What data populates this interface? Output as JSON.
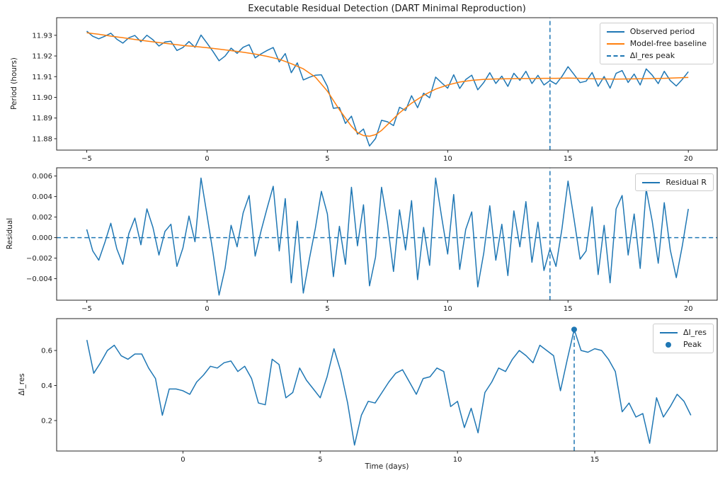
{
  "figure": {
    "title": "Executable Residual Detection (DART Minimal Reproduction)",
    "xlabel": "Time (days)",
    "colors": {
      "blue": "#1f77b4",
      "orange": "#ff7f0e",
      "spine": "#262626",
      "text": "#1a1a1a",
      "background": "#ffffff"
    }
  },
  "chart_data": [
    {
      "id": "period",
      "type": "line",
      "title": "Executable Residual Detection (DART Minimal Reproduction)",
      "ylabel": "Period (hours)",
      "xlim": [
        -6.25,
        21.2
      ],
      "ylim": [
        11.8745,
        11.9385
      ],
      "xticks": [
        -5,
        0,
        5,
        10,
        15,
        20
      ],
      "xtick_labels": [
        "−5",
        "0",
        "5",
        "10",
        "15",
        "20"
      ],
      "yticks": [
        11.88,
        11.89,
        11.9,
        11.91,
        11.92,
        11.93
      ],
      "ytick_labels": [
        "11.88",
        "11.89",
        "11.90",
        "11.91",
        "11.92",
        "11.93"
      ],
      "x": {
        "start": -5,
        "step": 0.25,
        "count": 101
      },
      "series": [
        {
          "name": "Observed period",
          "color": "#1f77b4",
          "style": "solid",
          "defined_as": "baseline_plus_residual"
        },
        {
          "name": "Model-free baseline",
          "color": "#ff7f0e",
          "style": "solid",
          "defined_as": "baseline_anchors"
        }
      ],
      "baseline_anchors": {
        "t": [
          -5,
          -4.5,
          -4,
          -3.5,
          -3,
          -2.5,
          -2,
          -1.5,
          -1,
          -0.5,
          0,
          0.5,
          1,
          1.5,
          2,
          2.5,
          3,
          3.5,
          4,
          4.5,
          5,
          5.5,
          6,
          6.25,
          6.5,
          6.75,
          7,
          7.25,
          7.5,
          8,
          8.5,
          9,
          9.5,
          10,
          10.5,
          11,
          11.5,
          12,
          12.5,
          13,
          13.5,
          14,
          14.5,
          15,
          15.5,
          16,
          16.5,
          17,
          17.5,
          18,
          18.5,
          19,
          19.5,
          20
        ],
        "v": [
          11.9312,
          11.9305,
          11.9296,
          11.9288,
          11.928,
          11.9272,
          11.9265,
          11.9258,
          11.9251,
          11.9246,
          11.924,
          11.9233,
          11.9226,
          11.9218,
          11.9209,
          11.9198,
          11.9184,
          11.9163,
          11.9138,
          11.9098,
          11.903,
          11.894,
          11.886,
          11.883,
          11.8815,
          11.8812,
          11.882,
          11.884,
          11.8868,
          11.8925,
          11.8972,
          11.901,
          11.904,
          11.906,
          11.9074,
          11.9082,
          11.9087,
          11.9089,
          11.909,
          11.9091,
          11.9091,
          11.9092,
          11.9092,
          11.9093,
          11.9092,
          11.909,
          11.9089,
          11.9088,
          11.9089,
          11.909,
          11.9091,
          11.9092,
          11.9094,
          11.9096
        ]
      },
      "residuals": [
        0.0008,
        -0.0013,
        -0.0022,
        -0.0005,
        0.0014,
        -0.0011,
        -0.0026,
        0.0004,
        0.0019,
        -0.0007,
        0.0028,
        0.001,
        -0.0017,
        0.0006,
        0.0013,
        -0.0028,
        -0.001,
        0.0021,
        -0.0004,
        0.0058,
        0.0022,
        -0.0015,
        -0.0056,
        -0.003,
        0.0012,
        -0.0009,
        0.0024,
        0.0041,
        -0.0018,
        0.0007,
        0.0029,
        0.005,
        -0.0013,
        0.0038,
        -0.0044,
        0.0016,
        -0.0054,
        -0.0021,
        0.0009,
        0.0045,
        0.0023,
        -0.0038,
        0.0011,
        -0.0026,
        0.0049,
        -0.0008,
        0.0032,
        -0.0047,
        -0.0019,
        0.0049,
        0.0014,
        -0.0033,
        0.0027,
        -0.0012,
        0.0036,
        -0.0041,
        0.001,
        -0.0027,
        0.0058,
        0.002,
        -0.0016,
        0.0042,
        -0.0031,
        0.0008,
        0.0025,
        -0.0048,
        -0.0015,
        0.0031,
        -0.0022,
        0.0013,
        -0.0037,
        0.0026,
        -0.0009,
        0.0035,
        -0.0024,
        0.0015,
        -0.0032,
        -0.0011,
        -0.0028,
        0.0009,
        0.0055,
        0.0018,
        -0.0021,
        -0.0013,
        0.003,
        -0.0036,
        0.0012,
        -0.0044,
        0.0028,
        0.0041,
        -0.0017,
        0.0023,
        -0.003,
        0.0047,
        0.0016,
        -0.0025,
        0.0034,
        -0.0012,
        -0.0039,
        -0.0008,
        0.0028
      ],
      "vline": {
        "x": 14.25,
        "color": "#1f77b4",
        "style": "dashed",
        "label": "ΔI_res peak"
      },
      "legend": [
        {
          "swatch": "line",
          "color": "#1f77b4",
          "label": "Observed period"
        },
        {
          "swatch": "line",
          "color": "#ff7f0e",
          "label": "Model-free baseline"
        },
        {
          "swatch": "dashed",
          "color": "#1f77b4",
          "label": "ΔI_res peak"
        }
      ]
    },
    {
      "id": "residual",
      "type": "line",
      "ylabel": "Residual",
      "xlim": [
        -6.25,
        21.2
      ],
      "ylim": [
        -0.0061,
        0.0068
      ],
      "xticks": [
        -5,
        0,
        5,
        10,
        15,
        20
      ],
      "xtick_labels": [
        "−5",
        "0",
        "5",
        "10",
        "15",
        "20"
      ],
      "yticks": [
        -0.004,
        -0.002,
        0,
        0.002,
        0.004,
        0.006
      ],
      "ytick_labels": [
        "−0.004",
        "−0.002",
        "0.000",
        "0.002",
        "0.004",
        "0.006"
      ],
      "x": {
        "start": -5,
        "step": 0.25,
        "count": 101
      },
      "series": [
        {
          "name": "Residual R",
          "color": "#1f77b4",
          "style": "solid"
        }
      ],
      "values": [
        0.0008,
        -0.0013,
        -0.0022,
        -0.0005,
        0.0014,
        -0.0011,
        -0.0026,
        0.0004,
        0.0019,
        -0.0007,
        0.0028,
        0.001,
        -0.0017,
        0.0006,
        0.0013,
        -0.0028,
        -0.001,
        0.0021,
        -0.0004,
        0.0058,
        0.0022,
        -0.0015,
        -0.0056,
        -0.003,
        0.0012,
        -0.0009,
        0.0024,
        0.0041,
        -0.0018,
        0.0007,
        0.0029,
        0.005,
        -0.0013,
        0.0038,
        -0.0044,
        0.0016,
        -0.0054,
        -0.0021,
        0.0009,
        0.0045,
        0.0023,
        -0.0038,
        0.0011,
        -0.0026,
        0.0049,
        -0.0008,
        0.0032,
        -0.0047,
        -0.0019,
        0.0049,
        0.0014,
        -0.0033,
        0.0027,
        -0.0012,
        0.0036,
        -0.0041,
        0.001,
        -0.0027,
        0.0058,
        0.002,
        -0.0016,
        0.0042,
        -0.0031,
        0.0008,
        0.0025,
        -0.0048,
        -0.0015,
        0.0031,
        -0.0022,
        0.0013,
        -0.0037,
        0.0026,
        -0.0009,
        0.0035,
        -0.0024,
        0.0015,
        -0.0032,
        -0.0011,
        -0.0028,
        0.0009,
        0.0055,
        0.0018,
        -0.0021,
        -0.0013,
        0.003,
        -0.0036,
        0.0012,
        -0.0044,
        0.0028,
        0.0041,
        -0.0017,
        0.0023,
        -0.003,
        0.0047,
        0.0016,
        -0.0025,
        0.0034,
        -0.0012,
        -0.0039,
        -0.0008,
        0.0028
      ],
      "hline": {
        "y": 0,
        "color": "#1f77b4",
        "style": "dashed"
      },
      "vline": {
        "x": 14.25,
        "color": "#1f77b4",
        "style": "dashed"
      },
      "legend": [
        {
          "swatch": "line",
          "color": "#1f77b4",
          "label": "Residual R"
        }
      ]
    },
    {
      "id": "delta",
      "type": "line",
      "ylabel": "ΔI_res",
      "xlabel": "Time (days)",
      "xlim": [
        -4.6,
        19.46
      ],
      "ylim": [
        0.026,
        0.782
      ],
      "xticks": [
        0,
        5,
        10,
        15
      ],
      "xtick_labels": [
        "0",
        "5",
        "10",
        "15"
      ],
      "yticks": [
        0.2,
        0.4,
        0.6
      ],
      "ytick_labels": [
        "0.2",
        "0.4",
        "0.6"
      ],
      "x": {
        "start": -3.5,
        "step": 0.25,
        "count": 89
      },
      "series": [
        {
          "name": "ΔI_res",
          "color": "#1f77b4",
          "style": "solid"
        }
      ],
      "values": [
        0.66,
        0.47,
        0.53,
        0.6,
        0.63,
        0.57,
        0.55,
        0.58,
        0.58,
        0.5,
        0.44,
        0.23,
        0.38,
        0.38,
        0.37,
        0.35,
        0.42,
        0.46,
        0.51,
        0.5,
        0.53,
        0.54,
        0.48,
        0.51,
        0.44,
        0.3,
        0.29,
        0.55,
        0.52,
        0.33,
        0.36,
        0.5,
        0.43,
        0.38,
        0.33,
        0.45,
        0.61,
        0.48,
        0.3,
        0.06,
        0.23,
        0.31,
        0.3,
        0.36,
        0.42,
        0.47,
        0.49,
        0.42,
        0.35,
        0.44,
        0.45,
        0.5,
        0.48,
        0.28,
        0.31,
        0.16,
        0.27,
        0.13,
        0.36,
        0.42,
        0.5,
        0.48,
        0.55,
        0.6,
        0.57,
        0.53,
        0.63,
        0.6,
        0.57,
        0.37,
        0.55,
        0.72,
        0.6,
        0.59,
        0.61,
        0.6,
        0.55,
        0.48,
        0.25,
        0.3,
        0.22,
        0.24,
        0.07,
        0.33,
        0.22,
        0.28,
        0.35,
        0.31,
        0.23
      ],
      "peak": {
        "x": 14.25,
        "y": 0.72,
        "label": "Peak"
      },
      "vline": {
        "x": 14.25,
        "color": "#1f77b4",
        "style": "dashed",
        "to_peak": true
      },
      "legend": [
        {
          "swatch": "line",
          "color": "#1f77b4",
          "label": "ΔI_res"
        },
        {
          "swatch": "dot",
          "color": "#1f77b4",
          "label": "Peak"
        }
      ]
    }
  ]
}
